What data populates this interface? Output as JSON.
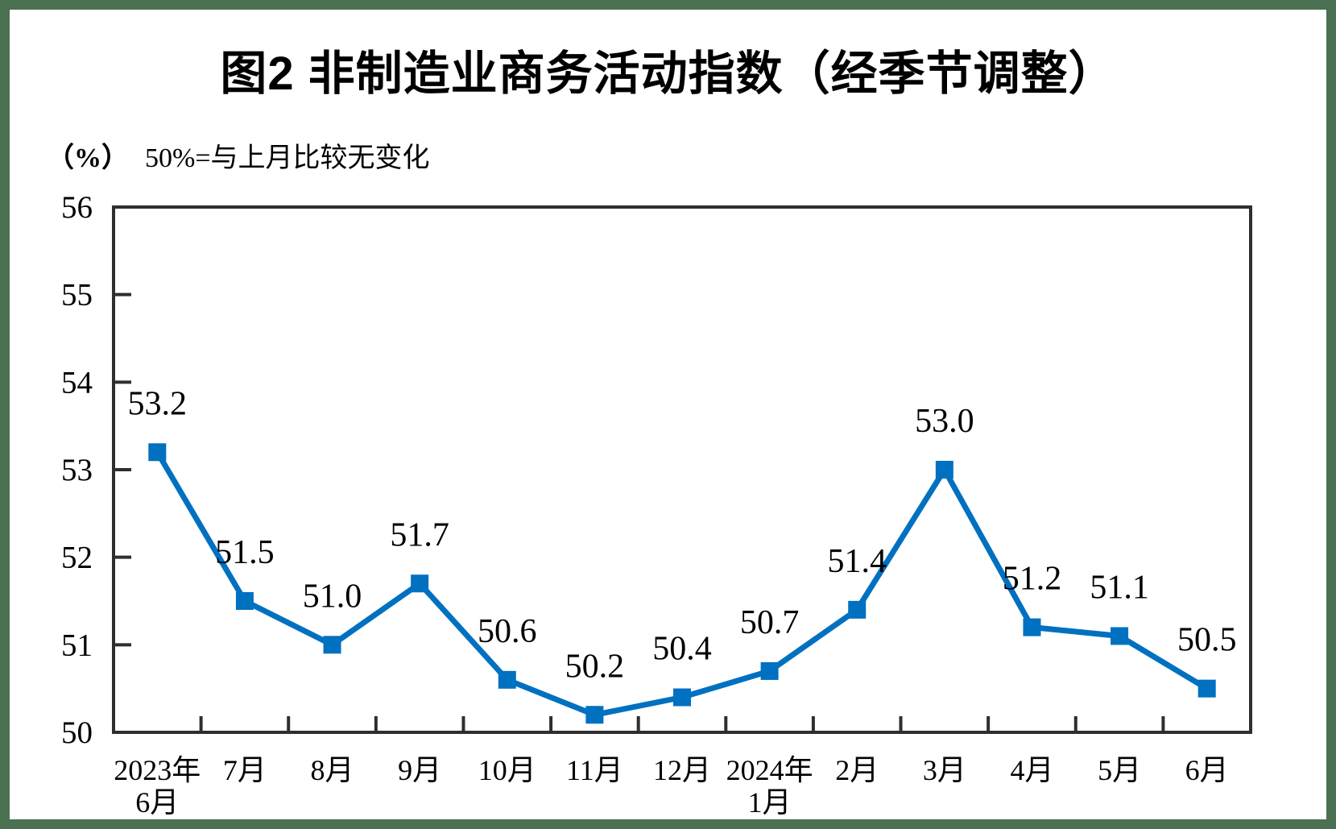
{
  "page": {
    "background_color": "#FFFFFF",
    "frame_border_color": "#4B7152"
  },
  "chart_data": {
    "type": "line",
    "title": "图2 非制造业商务活动指数（经季节调整）",
    "y_unit_label": "（%）",
    "annotation": "50%=与上月比较无变化",
    "xlabel": "",
    "ylabel": "",
    "categories": [
      "2023年\n6月",
      "7月",
      "8月",
      "9月",
      "10月",
      "11月",
      "12月",
      "2024年\n1月",
      "2月",
      "3月",
      "4月",
      "5月",
      "6月"
    ],
    "values": [
      53.2,
      51.5,
      51.0,
      51.7,
      50.6,
      50.2,
      50.4,
      50.7,
      51.4,
      53.0,
      51.2,
      51.1,
      50.5
    ],
    "data_labels": [
      "53.2",
      "51.5",
      "51.0",
      "51.7",
      "50.6",
      "50.2",
      "50.4",
      "50.7",
      "51.4",
      "53.0",
      "51.2",
      "51.1",
      "50.5"
    ],
    "ylim": [
      50,
      56
    ],
    "ytick_step": 1,
    "yticks": [
      50,
      51,
      52,
      53,
      54,
      55,
      56
    ],
    "grid": false,
    "legend": "none",
    "marker": "square",
    "line_color": "#0070C0",
    "axis_color": "#2E2E2E",
    "text_color": "#000000"
  }
}
